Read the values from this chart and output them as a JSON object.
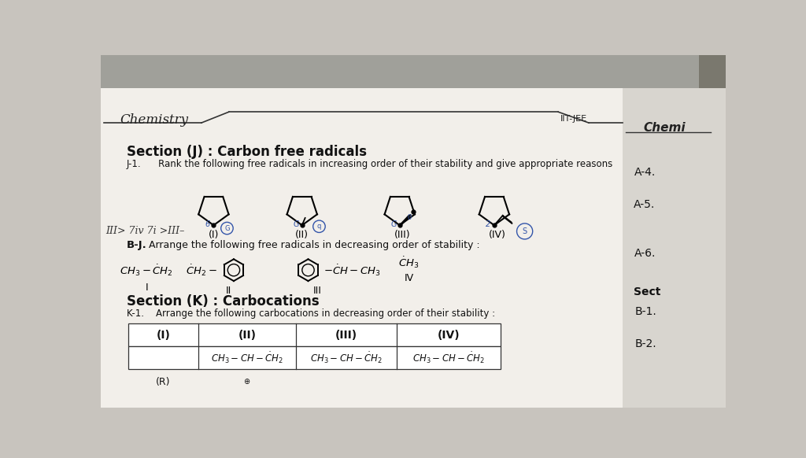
{
  "bg_top": "#b8b4ae",
  "bg_main": "#c8c4be",
  "page_color": "#e8e5e0",
  "white_page": "#f2efea",
  "right_panel_bg": "#c5c1bb",
  "title_chemistry": "Chemistry",
  "title_iitjee": "IIT-JEE",
  "title_chemi": "Chemi",
  "section_j_title": "Section (J) : Carbon free radicals",
  "j1_text": "J-1.      Rank the following free radicals in increasing order of their stability and give appropriate reasons",
  "bj_label": "B-J.",
  "bj_text": "  Arrange the following free radicals in decreasing order of stability :",
  "section_k_title": "Section (K) : Carbocations",
  "k1_text": "K-1.    Arrange the following carbocations in decreasing order of their stability :",
  "a4_label": "A-4.",
  "a5_label": "A-5.",
  "a6_label": "A-6.",
  "sec_label": "Sect",
  "b1_label": "B-1.",
  "b2_label": "B-2.",
  "table_headers": [
    "(I)",
    "(II)",
    "(III)",
    "(IV)"
  ],
  "radical_labels": [
    "(I)",
    "(II)",
    "(III)",
    "(IV)"
  ]
}
